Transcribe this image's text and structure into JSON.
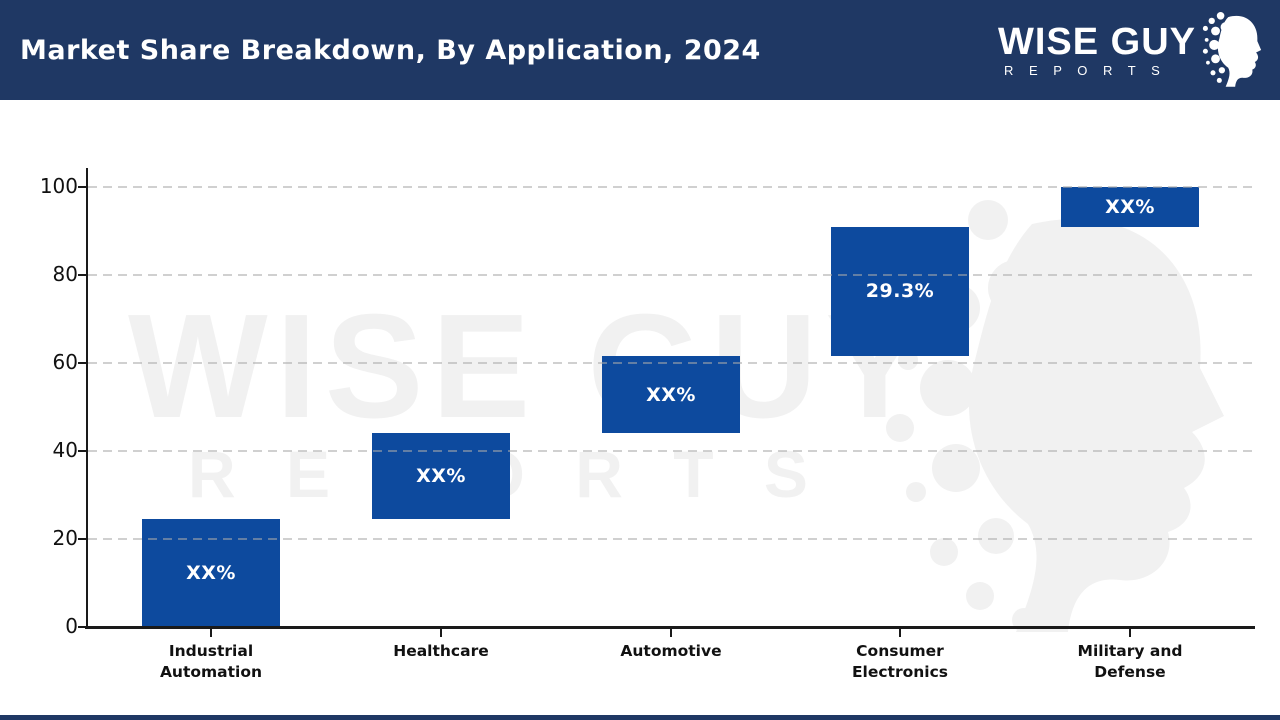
{
  "header": {
    "title": "Market Share Breakdown, By Application, 2024",
    "logo": {
      "line1": "WISE GUY",
      "line2": "R E P O R T S"
    }
  },
  "watermark": {
    "line1": "WISE GUY",
    "line2": "R E P O R T S"
  },
  "colors": {
    "header_bg": "#1f3864",
    "bar": "#0d4a9e",
    "axis": "#1a1a1a",
    "grid": "#b0b0b0",
    "watermark": "#f1f1f1",
    "value_label": "#ffffff"
  },
  "chart_data": {
    "type": "bar",
    "subtype": "waterfall",
    "title": "Market Share Breakdown, By Application, 2024",
    "categories": [
      "Industrial Automation",
      "Healthcare",
      "Automotive",
      "Consumer Electronics",
      "Military and Defense"
    ],
    "category_label_lines": [
      [
        "Industrial",
        "Automation"
      ],
      [
        "Healthcare"
      ],
      [
        "Automotive"
      ],
      [
        "Consumer",
        "Electronics"
      ],
      [
        "Military and",
        "Defense"
      ]
    ],
    "segments": [
      {
        "category": "Industrial Automation",
        "start": 0,
        "end": 24.5,
        "value_label": "XX%"
      },
      {
        "category": "Healthcare",
        "start": 24.5,
        "end": 44.0,
        "value_label": "XX%"
      },
      {
        "category": "Automotive",
        "start": 44.0,
        "end": 61.6,
        "value_label": "XX%"
      },
      {
        "category": "Consumer Electronics",
        "start": 61.6,
        "end": 90.9,
        "value_label": "29.3%",
        "value": 29.3
      },
      {
        "category": "Military and Defense",
        "start": 90.9,
        "end": 100.0,
        "value_label": "XX%"
      }
    ],
    "yticks": [
      0,
      20,
      40,
      60,
      80,
      100
    ],
    "ylim": [
      0,
      104
    ],
    "xlabel": "",
    "ylabel": "",
    "grid": "horizontal-dashed",
    "legend": "none",
    "bar_color": "#0d4a9e"
  }
}
